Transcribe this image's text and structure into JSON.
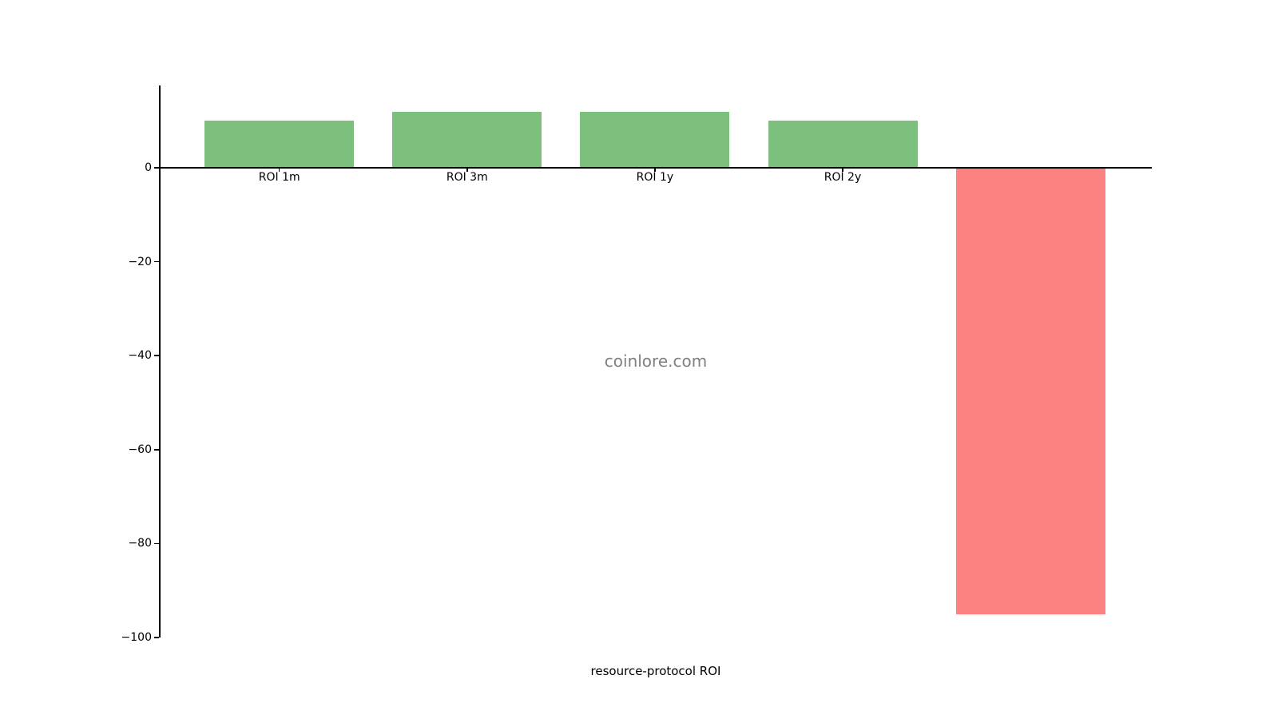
{
  "chart_data": {
    "type": "bar",
    "title": "",
    "xlabel": "resource-protocol ROI",
    "ylabel": "",
    "watermark": "coinlore.com",
    "categories": [
      "ROI 1m",
      "ROI 3m",
      "ROI 1y",
      "ROI 2y",
      ""
    ],
    "values": [
      10.1,
      11.9,
      11.9,
      10.1,
      -95.1
    ],
    "ytick_values": [
      0,
      -20,
      -40,
      -60,
      -80,
      -100
    ],
    "ytick_labels": [
      "0",
      "−20",
      "−40",
      "−60",
      "−80",
      "−100"
    ],
    "ylim": [
      -100,
      17.5
    ],
    "grid": false,
    "legend_position": "none",
    "colors": {
      "positive_bar": "#7dbf7d",
      "negative_bar": "#fc8181",
      "axis": "#000000",
      "watermark": "#808080",
      "background": "#ffffff"
    }
  }
}
